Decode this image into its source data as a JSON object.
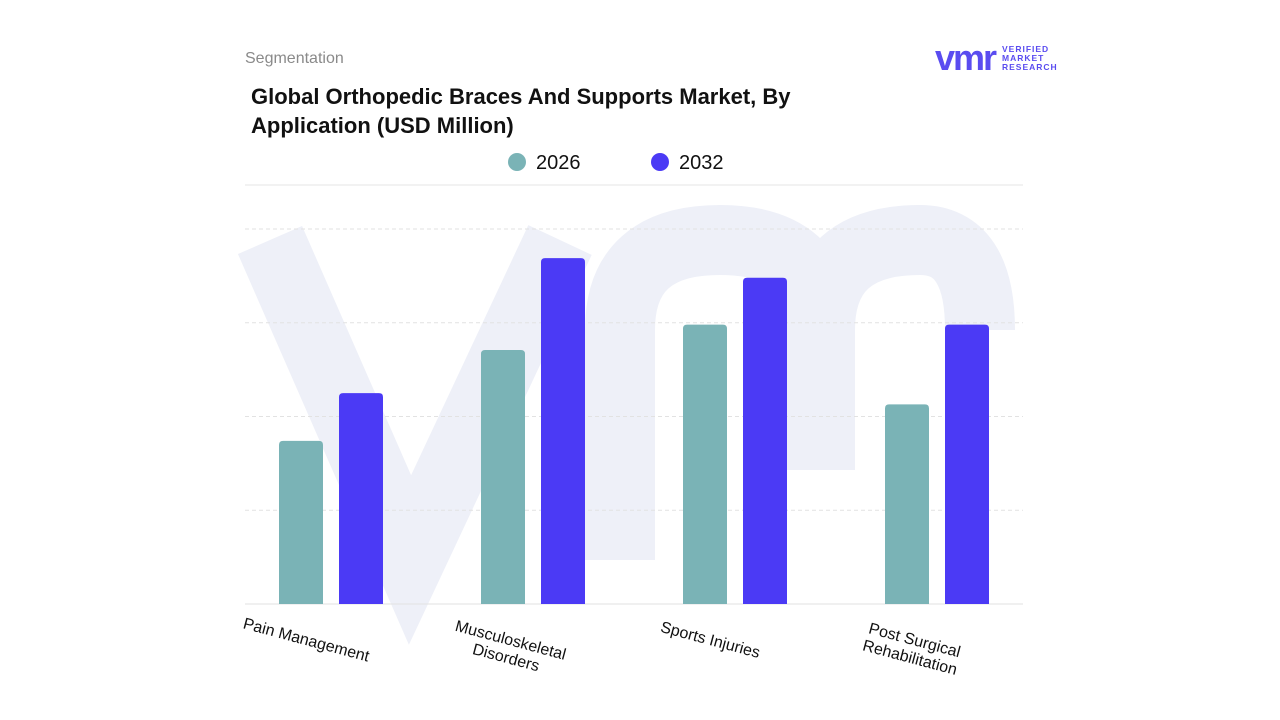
{
  "header": {
    "section": "Segmentation"
  },
  "logo": {
    "mark": "vmr",
    "lines": [
      "VERIFIED",
      "MARKET",
      "RESEARCH"
    ]
  },
  "chart_data": {
    "type": "bar",
    "title": "Global Orthopedic Braces And Supports Market, By Application (USD Million)",
    "categories": [
      "Pain Management",
      "Musculoskeletal Disorders",
      "Sports Injuries",
      "Post Surgical Rehabilitation"
    ],
    "series": [
      {
        "name": "2026",
        "color": "#7ab3b6",
        "values": [
          1.74,
          2.71,
          2.98,
          2.13
        ]
      },
      {
        "name": "2032",
        "color": "#4b3af5",
        "values": [
          2.25,
          3.69,
          3.48,
          2.98
        ]
      }
    ],
    "ylim": [
      0,
      4.47
    ],
    "yticks": [
      0,
      1,
      2,
      3,
      4
    ],
    "grid": true
  }
}
